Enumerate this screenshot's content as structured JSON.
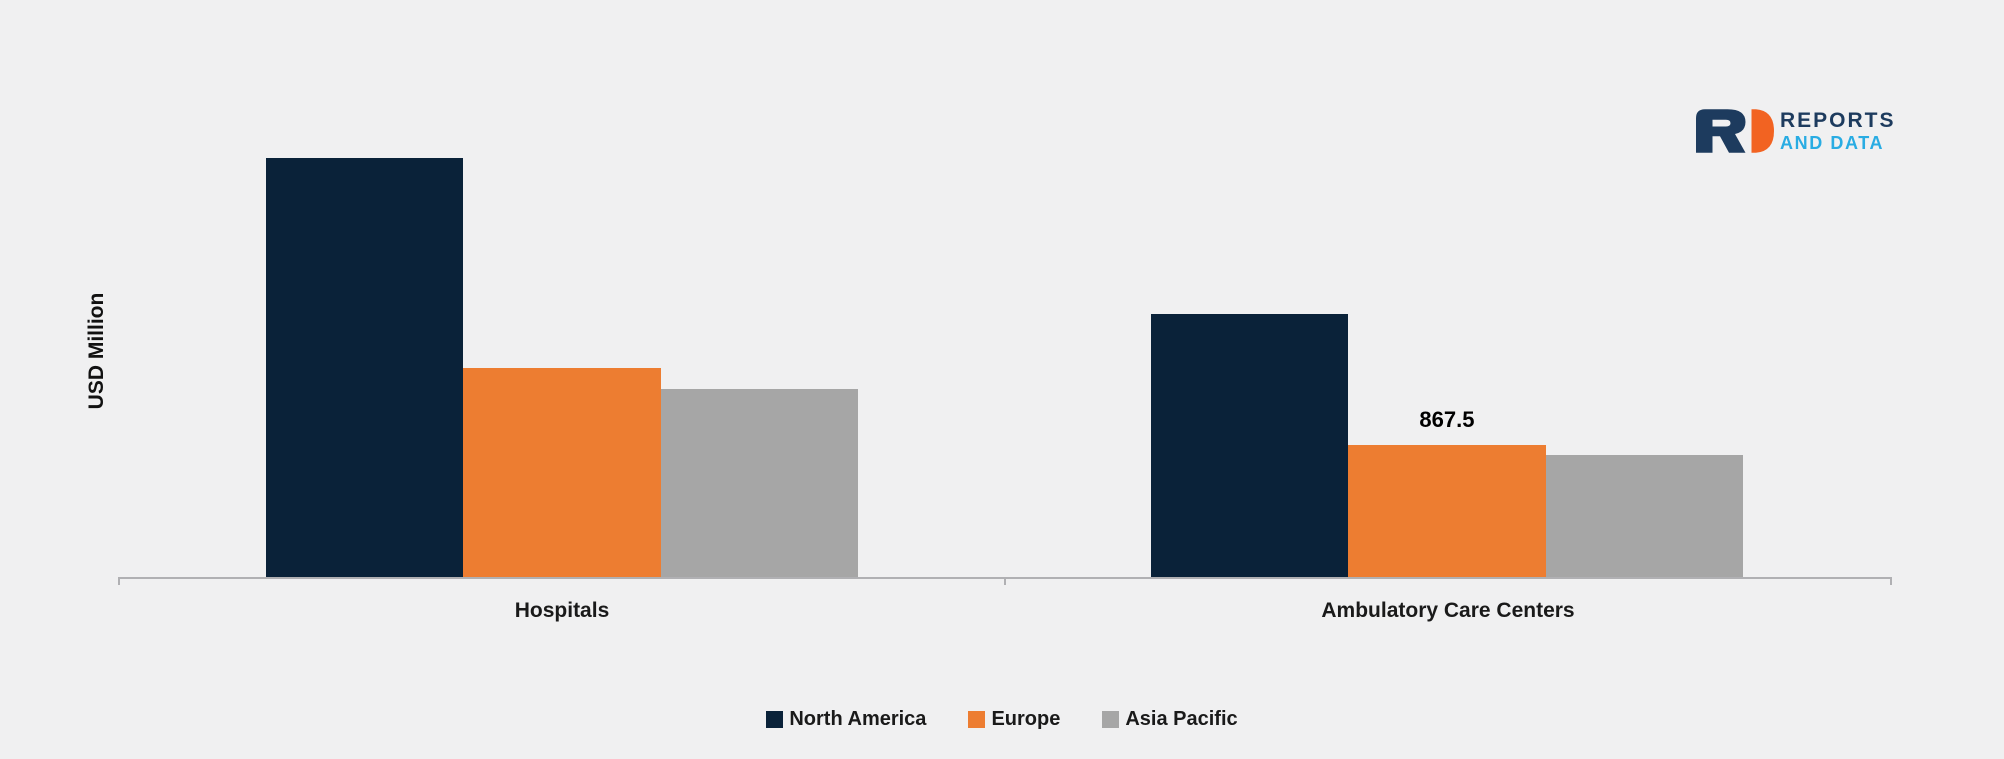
{
  "logo": {
    "line1": "REPORTS",
    "line2": "AND DATA",
    "mark_r_color": "#1d3b5e",
    "mark_d_color": "#f26322",
    "line1_color": "#1d3b5e",
    "line2_color": "#29ace3"
  },
  "chart_data": {
    "type": "bar",
    "ylabel": "USD Million",
    "categories": [
      "Hospitals",
      "Ambulatory Care Centers"
    ],
    "series": [
      {
        "name": "North America",
        "color": "#0a2239",
        "values": [
          2745,
          1720
        ]
      },
      {
        "name": "Europe",
        "color": "#ed7d31",
        "values": [
          1370,
          867.5
        ]
      },
      {
        "name": "Asia Pacific",
        "color": "#a6a6a6",
        "values": [
          1235,
          800
        ]
      }
    ],
    "data_labels": [
      {
        "series_index": 1,
        "category_index": 1,
        "text": "867.5"
      }
    ],
    "ylim": [
      0,
      3000
    ],
    "grid": false,
    "legend_position": "bottom",
    "background": "#f0f0f1",
    "axis_color": "#b0b0b3"
  }
}
